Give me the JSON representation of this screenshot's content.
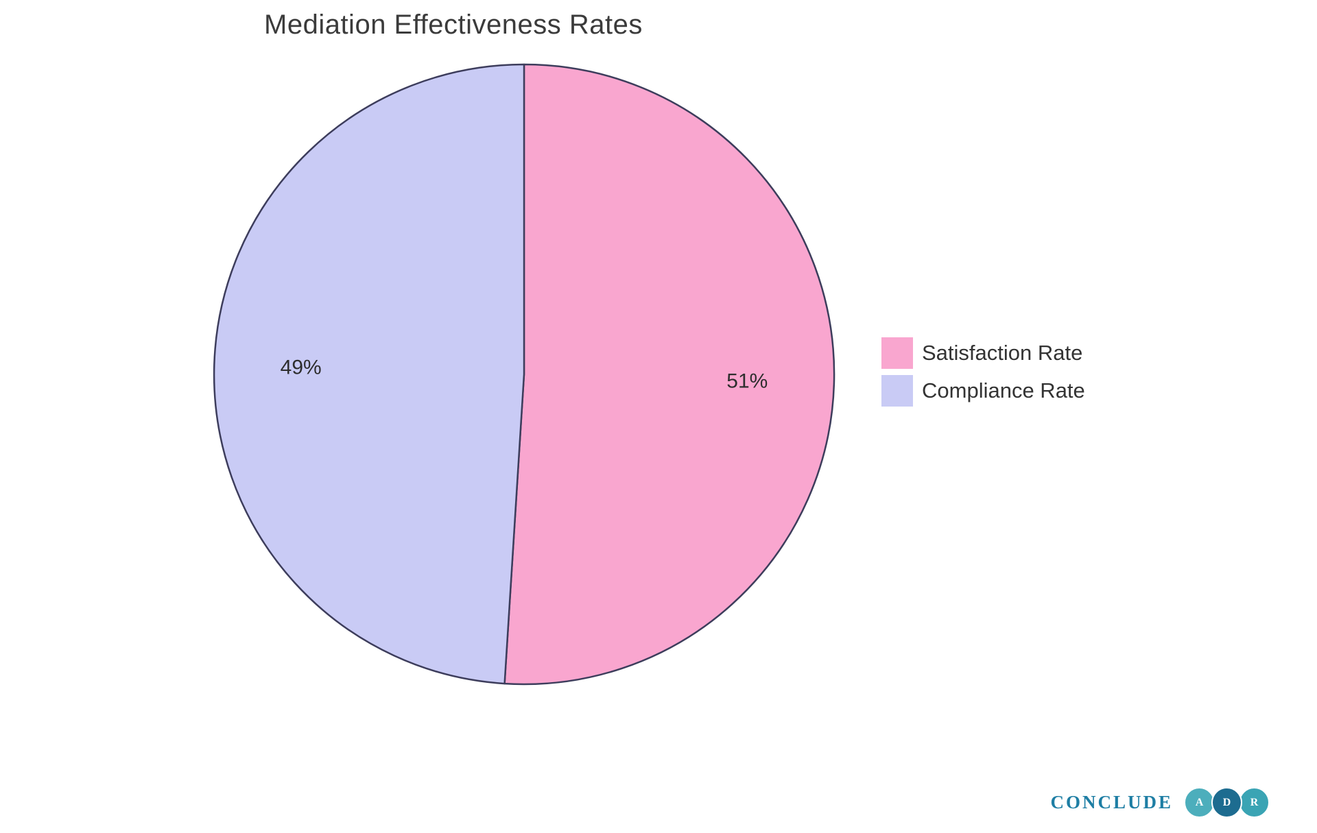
{
  "chart_data": {
    "type": "pie",
    "title": "Mediation Effectiveness Rates",
    "slices": [
      {
        "label": "Satisfaction Rate",
        "value": 51,
        "display": "51%",
        "color": "#F9A6CF"
      },
      {
        "label": "Compliance Rate",
        "value": 49,
        "display": "49%",
        "color": "#C9CBF5"
      }
    ],
    "start_angle": "top",
    "direction": "clockwise",
    "stroke_color": "#3D3D5C",
    "label_color": "#2E2E2E",
    "legend_position": "right",
    "grid": false
  },
  "branding": {
    "wordmark": "CONCLUDE",
    "wordmark_color": "#1E7EA4",
    "badges": [
      {
        "letter": "A",
        "color": "#4CAEBC"
      },
      {
        "letter": "D",
        "color": "#1D6C90"
      },
      {
        "letter": "R",
        "color": "#3AA4B4"
      }
    ]
  }
}
